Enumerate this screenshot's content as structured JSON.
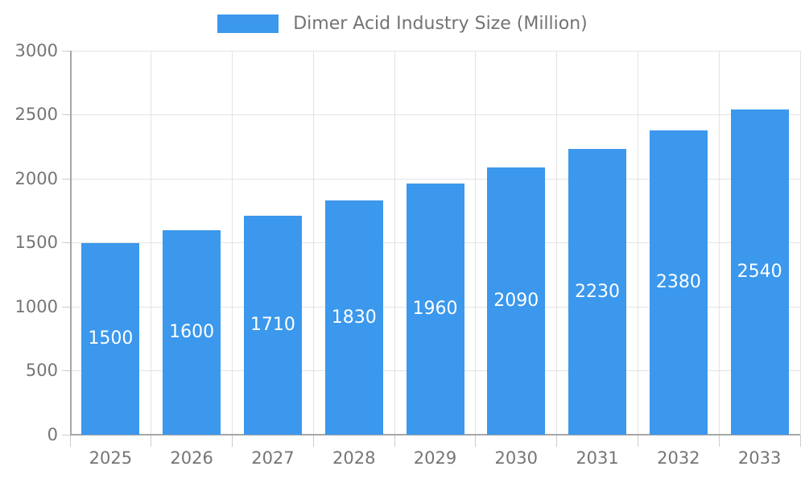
{
  "legend": {
    "label": "Dimer Acid Industry Size (Million)"
  },
  "chart_data": {
    "type": "bar",
    "title": "Dimer Acid Industry Size (Million)",
    "categories": [
      "2025",
      "2026",
      "2027",
      "2028",
      "2029",
      "2030",
      "2031",
      "2032",
      "2033"
    ],
    "series": [
      {
        "name": "Dimer Acid Industry Size (Million)",
        "values": [
          1500,
          1600,
          1710,
          1830,
          1960,
          2090,
          2230,
          2380,
          2540
        ]
      }
    ],
    "bar_value_labels": [
      "1500",
      "1600",
      "1710",
      "1830",
      "1960",
      "2090",
      "2230",
      "2380",
      "2540"
    ],
    "xlabel": "",
    "ylabel": "",
    "ylim": [
      0,
      3000
    ],
    "yticks": [
      0,
      500,
      1000,
      1500,
      2000,
      2500,
      3000
    ],
    "ytick_labels": [
      "0",
      "500",
      "1000",
      "1500",
      "2000",
      "2500",
      "3000"
    ],
    "grid": "on",
    "legend_position": "top",
    "colors": {
      "bar": "#3B98EC",
      "grid": "#e3e3e3",
      "axis": "#a6a6a6",
      "tick_mark": "#cccccc",
      "tick_label": "#757575",
      "legend_text": "#737373",
      "bar_label": "#ffffff",
      "background": "#ffffff"
    }
  }
}
